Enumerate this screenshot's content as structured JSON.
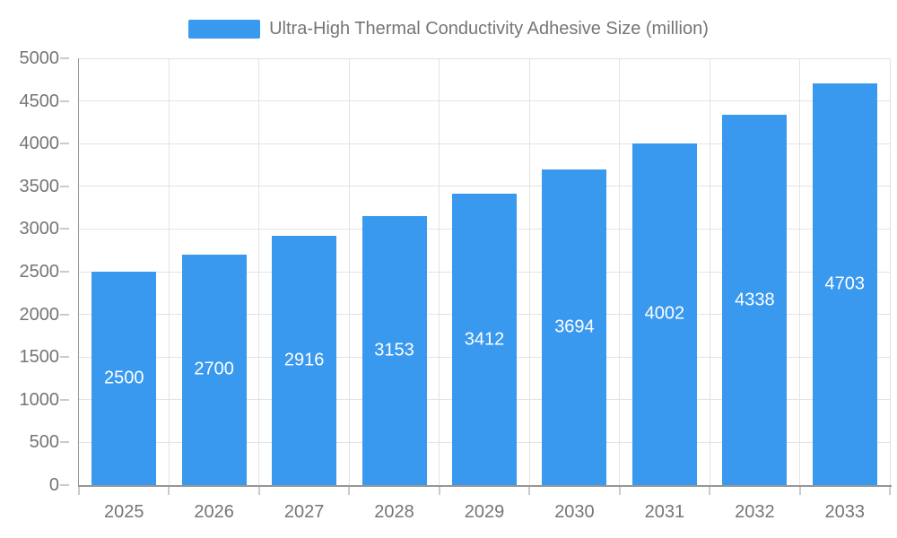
{
  "legend": {
    "label": "Ultra-High Thermal Conductivity Adhesive Size (million)"
  },
  "chart_data": {
    "type": "bar",
    "title": "Ultra-High Thermal Conductivity Adhesive Size (million)",
    "series_name": "Ultra-High Thermal Conductivity Adhesive Size (million)",
    "categories": [
      "2025",
      "2026",
      "2027",
      "2028",
      "2029",
      "2030",
      "2031",
      "2032",
      "2033"
    ],
    "values": [
      2500,
      2700,
      2916,
      3153,
      3412,
      3694,
      4002,
      4338,
      4703
    ],
    "xlabel": "",
    "ylabel": "",
    "ylim": [
      0,
      5000
    ],
    "ytick_step": 500,
    "yticks": [
      0,
      500,
      1000,
      1500,
      2000,
      2500,
      3000,
      3500,
      4000,
      4500,
      5000
    ],
    "grid": true,
    "legend_position": "top-center",
    "value_labels": "inside-center",
    "colors": {
      "bar": "#3999EF",
      "grid": "#E3E3E3",
      "axis": "#969696",
      "tick": "#CBCBCB",
      "axis_text": "#757575",
      "value_text": "#FFFFFF",
      "background": "#FFFFFF"
    }
  }
}
